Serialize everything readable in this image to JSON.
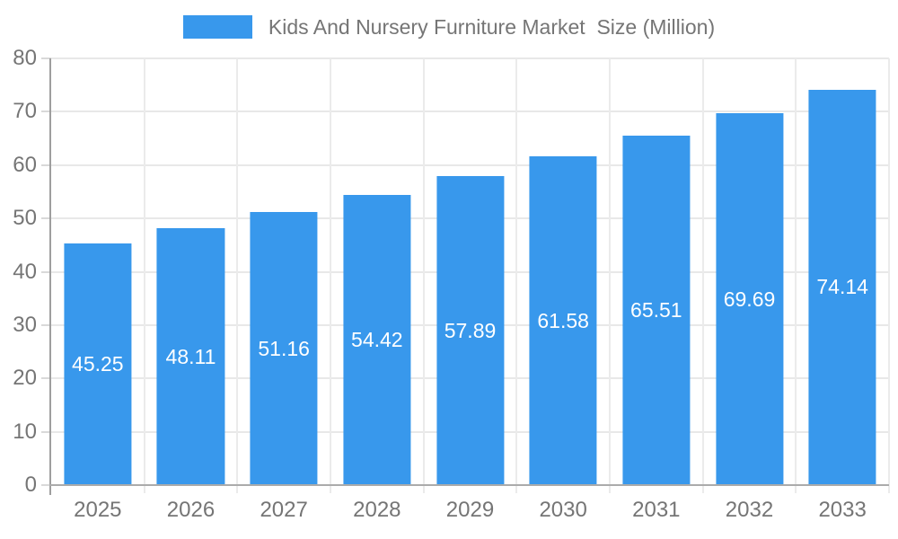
{
  "legend": {
    "label": "Kids And Nursery Furniture Market  Size (Million)",
    "swatch_color": "#3898EC"
  },
  "chart_data": {
    "type": "bar",
    "title": "Kids And Nursery Furniture Market  Size (Million)",
    "categories": [
      "2025",
      "2026",
      "2027",
      "2028",
      "2029",
      "2030",
      "2031",
      "2032",
      "2033"
    ],
    "values": [
      45.25,
      48.11,
      51.16,
      54.42,
      57.89,
      61.58,
      65.51,
      69.69,
      74.14
    ],
    "xlabel": "",
    "ylabel": "",
    "ylim": [
      0,
      80
    ],
    "yticks": [
      0,
      10,
      20,
      30,
      40,
      50,
      60,
      70,
      80
    ],
    "grid": true,
    "legend_position": "top",
    "bar_color": "#3898EC",
    "value_label_color": "#FFFFFF",
    "gridline_color": "#E8E8E8",
    "axis_line_color": "#9E9E9E",
    "tick_label_color": "#757575"
  }
}
